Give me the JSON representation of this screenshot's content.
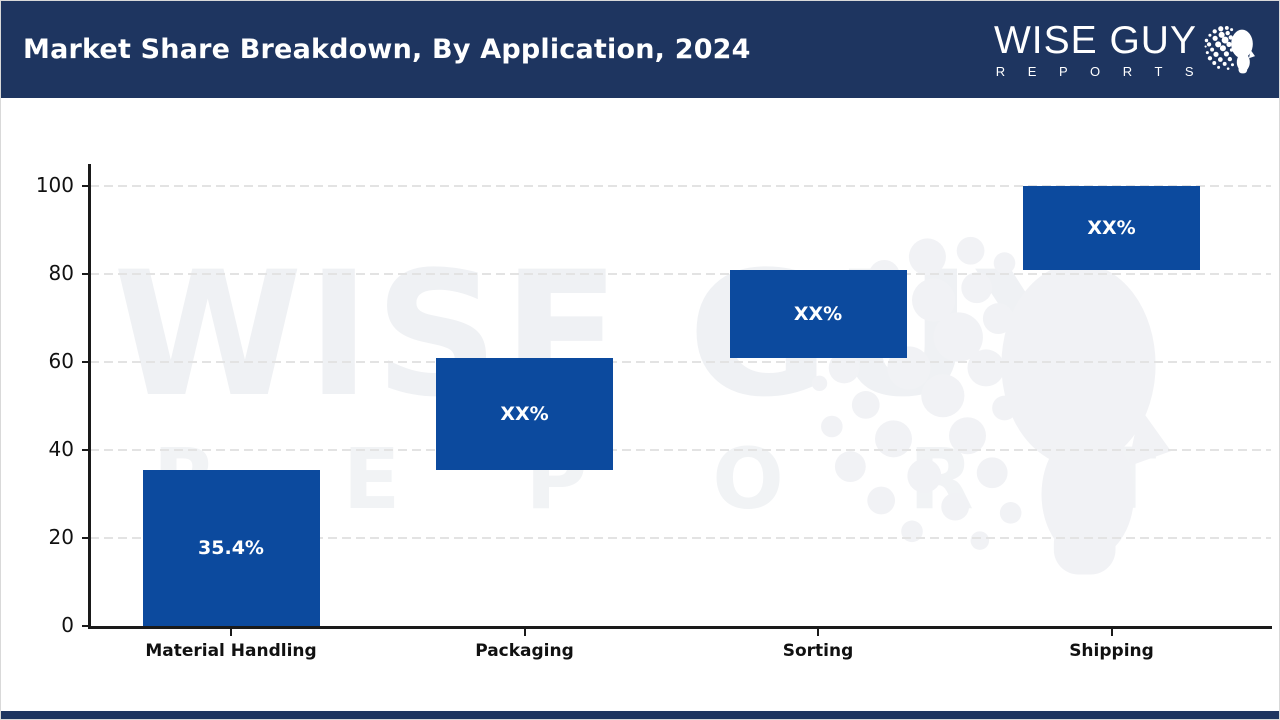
{
  "header": {
    "title": "Market Share Breakdown, By Application, 2024",
    "brand": {
      "line1": "WISE GUY",
      "line2": "R E P O R T S"
    }
  },
  "watermark": {
    "line1": "WISE GUY",
    "line2": "R E P O R T S"
  },
  "chart_data": {
    "type": "bar",
    "subtype": "waterfall",
    "title": "Market Share Breakdown, By Application, 2024",
    "xlabel": "",
    "ylabel": "",
    "categories": [
      "Material Handling",
      "Packaging",
      "Sorting",
      "Shipping"
    ],
    "segments": [
      {
        "category": "Material Handling",
        "start": 0,
        "end": 35.4,
        "label": "35.4%"
      },
      {
        "category": "Packaging",
        "start": 35.4,
        "end": 61,
        "label": "XX%"
      },
      {
        "category": "Sorting",
        "start": 61,
        "end": 81,
        "label": "XX%"
      },
      {
        "category": "Shipping",
        "start": 81,
        "end": 100,
        "label": "XX%"
      }
    ],
    "yticks": [
      0,
      20,
      40,
      60,
      80,
      100
    ],
    "ylim": [
      0,
      105
    ],
    "grid": "horizontal-dashed",
    "legend": "none",
    "bar_color": "#0c4a9e",
    "bar_label_color": "#ffffff"
  },
  "colors": {
    "header_bg": "#1e3560",
    "bar": "#0c4a9e",
    "axis": "#1a1a1a",
    "gridline": "#e3e3e3",
    "watermark": "#eff1f4"
  }
}
